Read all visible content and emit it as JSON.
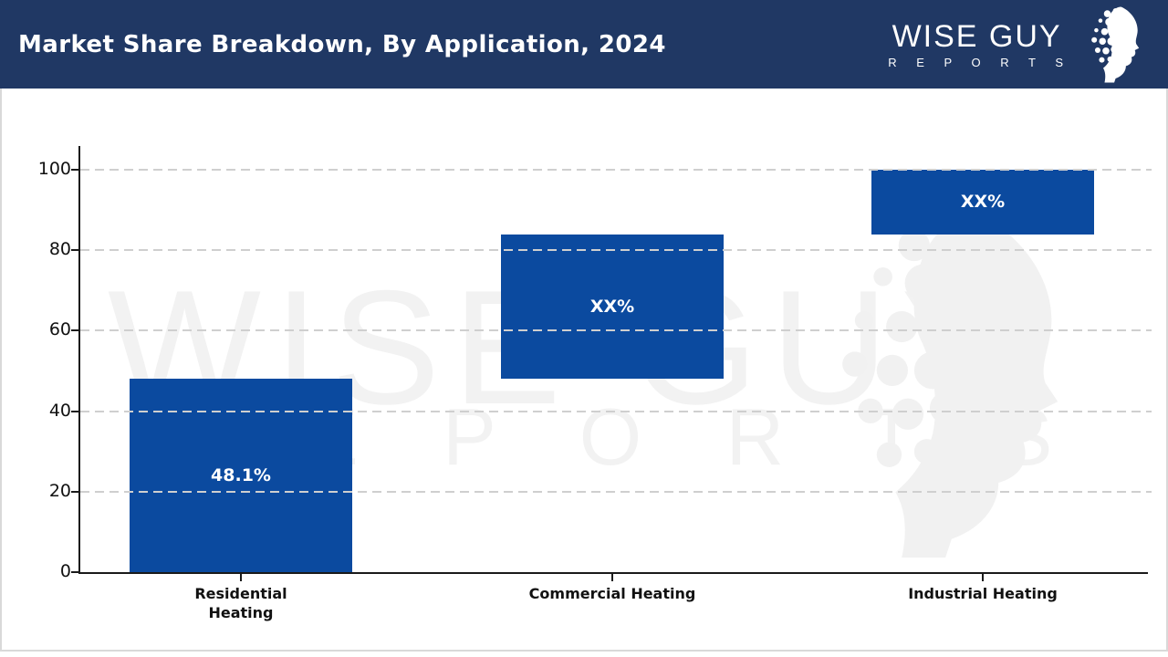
{
  "header": {
    "title": "Market Share Breakdown, By Application, 2024",
    "bg_color": "#203864",
    "logo": {
      "line1": "WISE GUY",
      "line2": "R E P O R T S"
    }
  },
  "watermark": {
    "line1": "WISE GUY",
    "line2": "R E P O R T S"
  },
  "chart_data": {
    "type": "bar",
    "variant": "waterfall-breakdown",
    "title": "Market Share Breakdown, By Application, 2024",
    "categories": [
      "Residential Heating",
      "Commercial Heating",
      "Industrial Heating"
    ],
    "category_display_lines": [
      [
        "Residential",
        "Heating"
      ],
      [
        "Commercial Heating"
      ],
      [
        "Industrial Heating"
      ]
    ],
    "segments": [
      {
        "category": "Residential Heating",
        "from": 0,
        "to": 48.1,
        "label": "48.1%"
      },
      {
        "category": "Commercial Heating",
        "from": 48.1,
        "to": 84,
        "label": "XX%"
      },
      {
        "category": "Industrial Heating",
        "from": 84,
        "to": 100,
        "label": "XX%"
      }
    ],
    "ylim": [
      0,
      100
    ],
    "yticks": [
      0,
      20,
      40,
      60,
      80,
      100
    ],
    "xlabel": "",
    "ylabel": "",
    "grid": "horizontal-dashed",
    "legend": "none",
    "bar_color": "#0b4a9f",
    "bar_label_color": "#ffffff",
    "axis_color": "#1a1a1a",
    "gridline_color": "#cfcfcf"
  }
}
